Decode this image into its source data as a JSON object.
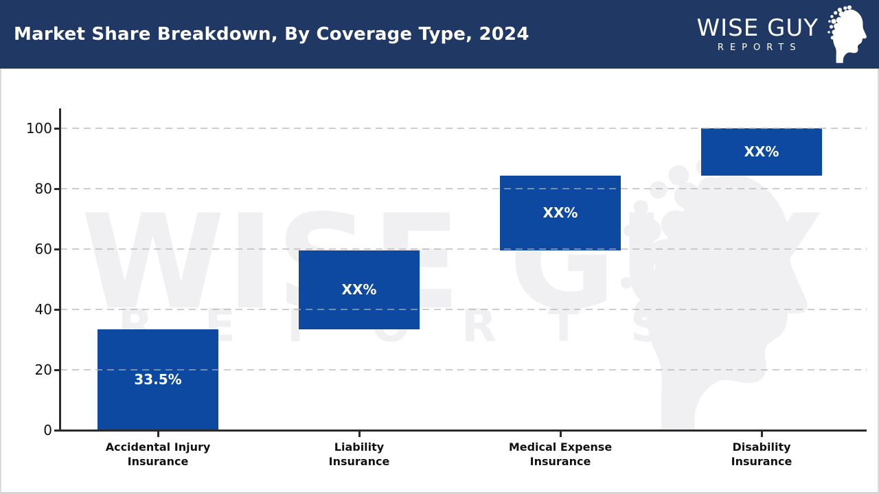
{
  "header": {
    "title": "Market Share Breakdown, By Coverage Type, 2024",
    "logo": {
      "line1": "WISE GUY",
      "line2": "REPORTS"
    }
  },
  "watermark": {
    "line1": "WISE GUY",
    "line2": "R E P O R T S"
  },
  "chart_data": {
    "type": "bar",
    "subtype": "waterfall",
    "title": "Market Share Breakdown, By Coverage Type, 2024",
    "xlabel": "",
    "ylabel": "",
    "ylim": [
      0,
      100
    ],
    "yticks": [
      0,
      20,
      40,
      60,
      80,
      100
    ],
    "grid": "horizontal-dashed",
    "legend": "none",
    "categories": [
      "Accidental Injury\nInsurance",
      "Liability\nInsurance",
      "Medical Expense\nInsurance",
      "Disability\nInsurance"
    ],
    "segments": [
      {
        "category": "Accidental Injury\nInsurance",
        "start": 0,
        "end": 33.5,
        "label": "33.5%"
      },
      {
        "category": "Liability\nInsurance",
        "start": 33.5,
        "end": 59.5,
        "label": "XX%"
      },
      {
        "category": "Medical Expense\nInsurance",
        "start": 59.5,
        "end": 84.5,
        "label": "XX%"
      },
      {
        "category": "Disability\nInsurance",
        "start": 84.5,
        "end": 100,
        "label": "XX%"
      }
    ],
    "colors": {
      "bar": "#0d49a1",
      "bar_label": "#ffffff",
      "axis": "#2a2a2a",
      "tick_label": "#111111"
    }
  },
  "colors": {
    "header_bg": "#1f3864",
    "body_bg": "#ffffff",
    "watermark": "#f0f0f3"
  }
}
